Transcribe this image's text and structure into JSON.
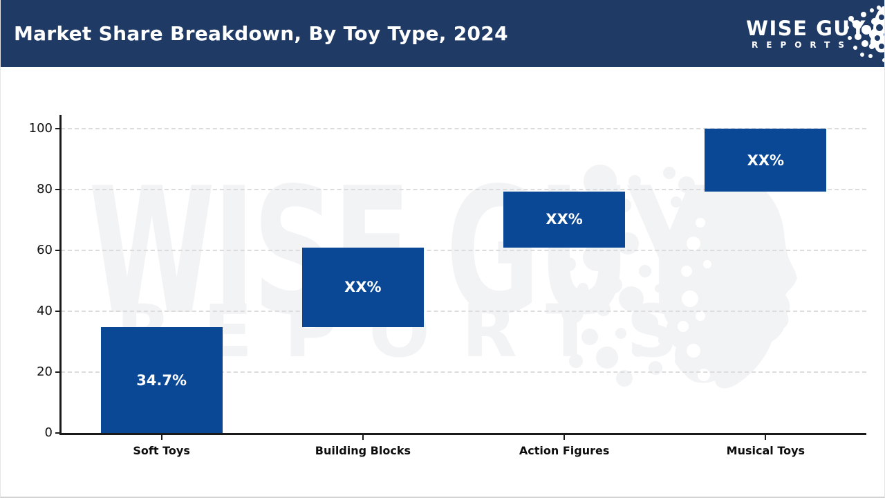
{
  "header": {
    "title": "Market Share Breakdown, By Toy Type, 2024",
    "background_color": "#203a66",
    "logo": {
      "line1": "WISE GUY",
      "line2": "REPORTS"
    }
  },
  "watermark": {
    "line1": "WISE GUY",
    "line2": "REPORTS"
  },
  "chart_data": {
    "type": "bar",
    "subtype": "waterfall",
    "title": "Market Share Breakdown, By Toy Type, 2024",
    "categories": [
      "Soft Toys",
      "Building Blocks",
      "Action Figures",
      "Musical Toys"
    ],
    "series": [
      {
        "name": "Market Share",
        "segments": [
          {
            "category": "Soft Toys",
            "start": 0,
            "end": 34.7,
            "label": "34.7%"
          },
          {
            "category": "Building Blocks",
            "start": 34.7,
            "end": 61.0,
            "label": "XX%"
          },
          {
            "category": "Action Figures",
            "start": 61.0,
            "end": 79.3,
            "label": "XX%"
          },
          {
            "category": "Musical Toys",
            "start": 79.3,
            "end": 100,
            "label": "XX%"
          }
        ]
      }
    ],
    "xlabel": "",
    "ylabel": "",
    "ylim": [
      0,
      100
    ],
    "yticks": [
      0,
      20,
      40,
      60,
      80,
      100
    ],
    "grid": "horizontal-dashed",
    "legend": "none",
    "bar_color": "#0a4795",
    "bar_label_color": "#ffffff"
  }
}
